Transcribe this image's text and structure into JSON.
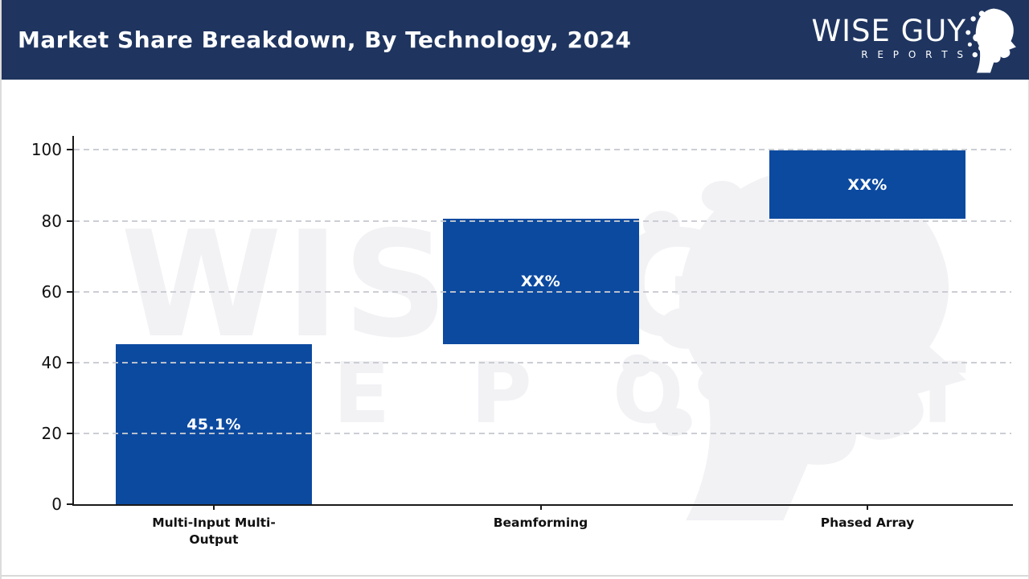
{
  "header": {
    "title": "Market Share Breakdown, By Technology, 2024",
    "logo": {
      "name_line": "WISE GUY",
      "sub_line": "R E P O R T S"
    }
  },
  "watermark": {
    "line1": "WISE GU",
    "line2": "R E P O R T S"
  },
  "colors": {
    "header_bg": "#1f3560",
    "bar": "#0c4aa0",
    "grid": "#d9d9d9",
    "axis": "#1a1a1a",
    "watermark": "#f2f2f5",
    "value_label": "#ffffff"
  },
  "chart_data": {
    "type": "bar",
    "subtype": "floating-waterfall",
    "title": "Market Share Breakdown, By Technology, 2024",
    "categories": [
      "Multi-Input Multi-Output",
      "Beamforming",
      "Phased Array"
    ],
    "segments": [
      {
        "category": "Multi-Input Multi-Output",
        "start": 0,
        "end": 45.1,
        "label": "45.1%"
      },
      {
        "category": "Beamforming",
        "start": 45.1,
        "end": 80.5,
        "label": "XX%"
      },
      {
        "category": "Phased Array",
        "start": 80.5,
        "end": 99.8,
        "label": "XX%"
      }
    ],
    "yticks": [
      0,
      20,
      40,
      60,
      80,
      100
    ],
    "ylim": [
      0,
      104
    ],
    "xlabel": "",
    "ylabel": "",
    "grid": "horizontal-dashed",
    "legend": "none",
    "bar_color": "#0c4aa0",
    "value_label_color": "#ffffff"
  }
}
